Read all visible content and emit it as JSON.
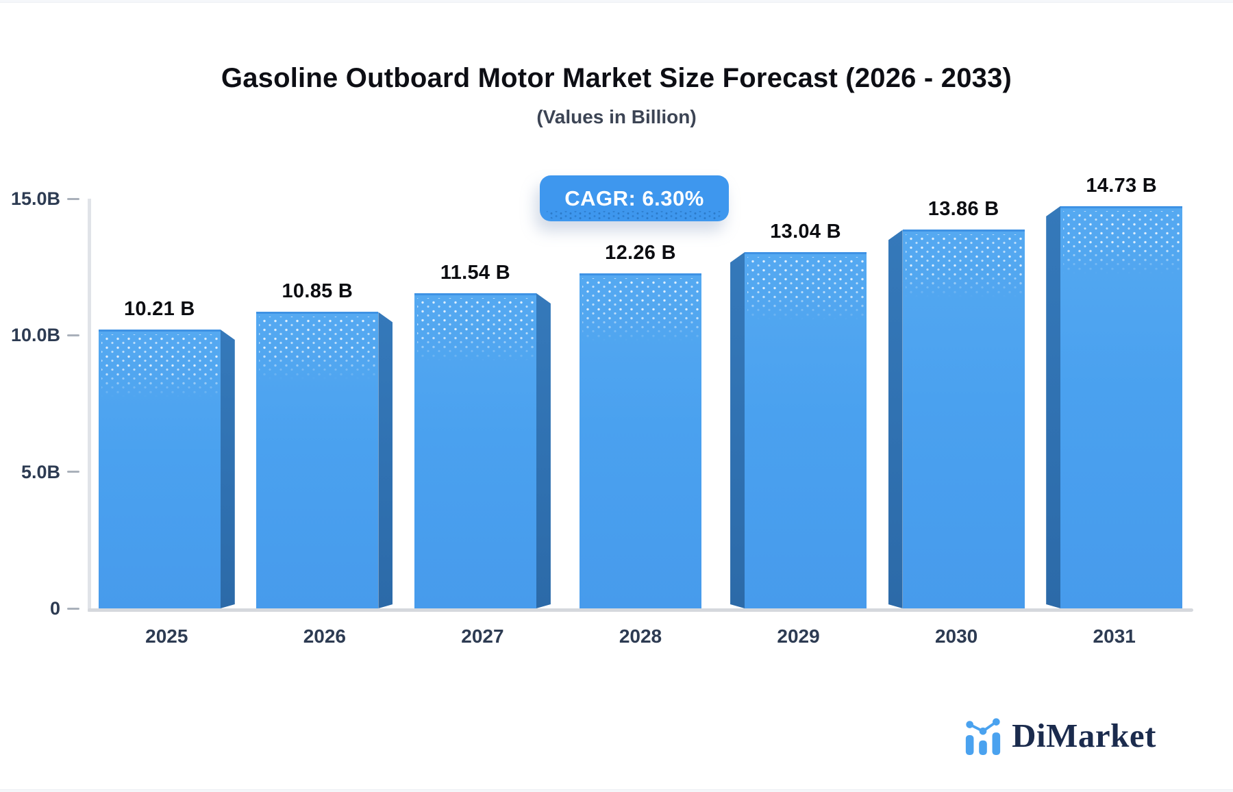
{
  "title": "Gasoline Outboard Motor Market Size Forecast (2026 - 2033)",
  "subtitle": "(Values in Billion)",
  "badge": {
    "label": "CAGR: 6.30%",
    "bg_color": "#3e97ee",
    "text_color": "#ffffff"
  },
  "chart_data": {
    "type": "bar",
    "categories": [
      "2025",
      "2026",
      "2027",
      "2028",
      "2029",
      "2030",
      "2031"
    ],
    "values": [
      10.21,
      10.85,
      11.54,
      12.26,
      13.04,
      13.86,
      14.73
    ],
    "value_labels": [
      "10.21 B",
      "10.85 B",
      "11.54 B",
      "12.26 B",
      "13.04 B",
      "13.86 B",
      "14.73 B"
    ],
    "title": "Gasoline Outboard Motor Market Size Forecast (2026 - 2033)",
    "subtitle": "(Values in Billion)",
    "annotation": "CAGR: 6.30%",
    "xlabel": "",
    "ylabel": "",
    "ylim": [
      0,
      15
    ],
    "y_ticks": [
      {
        "label": "15.0B",
        "value": 15
      },
      {
        "label": "10.0B",
        "value": 10
      },
      {
        "label": "5.0B",
        "value": 5
      },
      {
        "label": "0",
        "value": 0
      }
    ],
    "grid": false,
    "legend_position": "none",
    "bar_color": "#4aa1ef",
    "bar_side_color": "#2f70b0",
    "style": "3d-perspective-bars"
  },
  "brand": {
    "name": "DiMarket",
    "icon": "mini-bar-chart-icon",
    "icon_color": "#4aa2ef",
    "text_color": "#1b2b4d"
  }
}
